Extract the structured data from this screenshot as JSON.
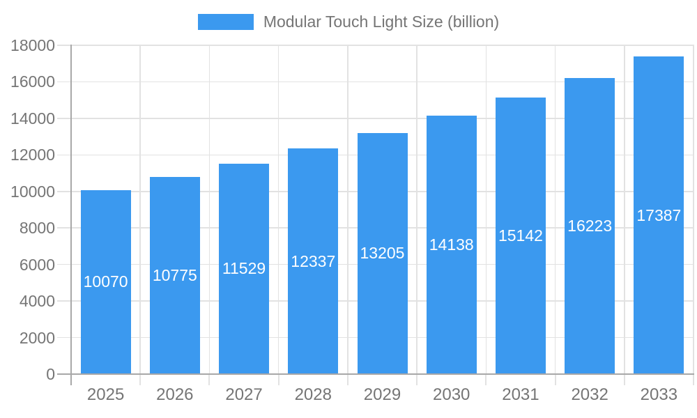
{
  "legend": {
    "label": "Modular Touch Light Size (billion)"
  },
  "chart_data": {
    "type": "bar",
    "title": "Modular Touch Light Size (billion)",
    "categories": [
      "2025",
      "2026",
      "2027",
      "2028",
      "2029",
      "2030",
      "2031",
      "2032",
      "2033"
    ],
    "values": [
      10070,
      10775,
      11529,
      12337,
      13205,
      14138,
      15142,
      16223,
      17387
    ],
    "value_labels": [
      "10070",
      "10775",
      "11529",
      "12337",
      "13205",
      "14138",
      "15142",
      "16223",
      "17387"
    ],
    "xlabel": "",
    "ylabel": "",
    "ylim": [
      0,
      18000
    ],
    "ytick_step": 2000,
    "ytick_labels": [
      "0",
      "2000",
      "4000",
      "6000",
      "8000",
      "10000",
      "12000",
      "14000",
      "16000",
      "18000"
    ],
    "grid": true,
    "legend_position": "top-center",
    "colors": {
      "bar": "#3B99EF",
      "axis_line": "#a8a8a8",
      "gridline": "#e2e2e2",
      "axis_text": "#757575",
      "value_label": "#ffffff",
      "background": "#ffffff"
    }
  }
}
